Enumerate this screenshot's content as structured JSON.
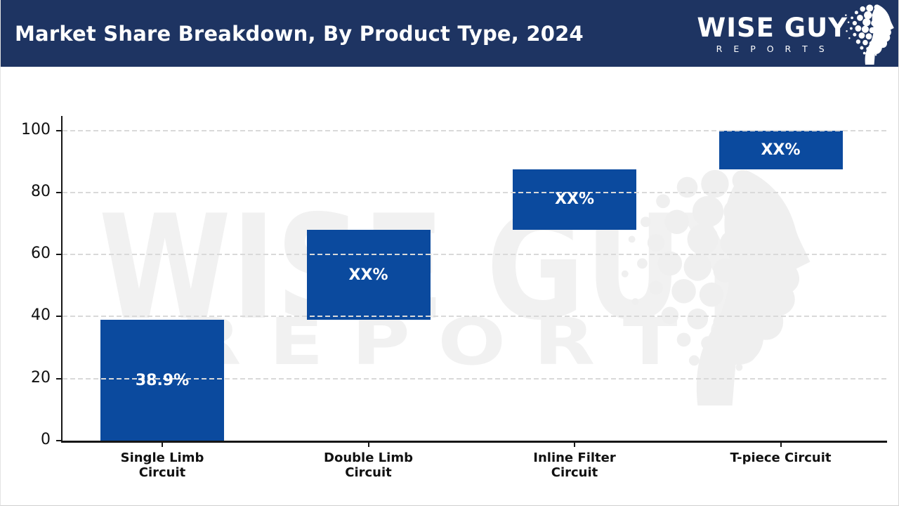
{
  "header": {
    "bg_color": "#1e3462",
    "title": "Market Share Breakdown, By Product Type, 2024",
    "logo": {
      "name": "WISE GUY",
      "tagline": "R E P O R T S"
    }
  },
  "watermark": {
    "line1": "WISE GUY",
    "line2": "R E P O R T S"
  },
  "chart_data": {
    "type": "bar",
    "subtype": "waterfall (floating cumulative market-share segments)",
    "title": "Market Share Breakdown, By Product Type, 2024",
    "categories": [
      "Single Limb Circuit",
      "Double Limb Circuit",
      "Inline Filter Circuit",
      "T-piece Circuit"
    ],
    "category_lines": [
      [
        "Single Limb",
        "Circuit"
      ],
      [
        "Double Limb",
        "Circuit"
      ],
      [
        "Inline Filter",
        "Circuit"
      ],
      [
        "T-piece Circuit"
      ]
    ],
    "segments": [
      {
        "category": "Single Limb Circuit",
        "start": 0,
        "end": 38.9,
        "label": "38.9%"
      },
      {
        "category": "Double Limb Circuit",
        "start": 38.9,
        "end": 68,
        "label": "XX%"
      },
      {
        "category": "Inline Filter Circuit",
        "start": 68,
        "end": 87.5,
        "label": "XX%"
      },
      {
        "category": "T-piece Circuit",
        "start": 87.5,
        "end": 100,
        "label": "XX%"
      }
    ],
    "xlabel": "",
    "ylabel": "",
    "ylim": [
      0,
      104
    ],
    "yticks": [
      0,
      20,
      40,
      60,
      80,
      100
    ],
    "grid": "horizontal dashed, drawn above bars",
    "legend": "none",
    "colors": {
      "bar": "#0b4a9e",
      "bar_label": "#ffffff",
      "grid": "#d9d9d9",
      "axis": "#161616",
      "tick_label": "#111111"
    }
  }
}
